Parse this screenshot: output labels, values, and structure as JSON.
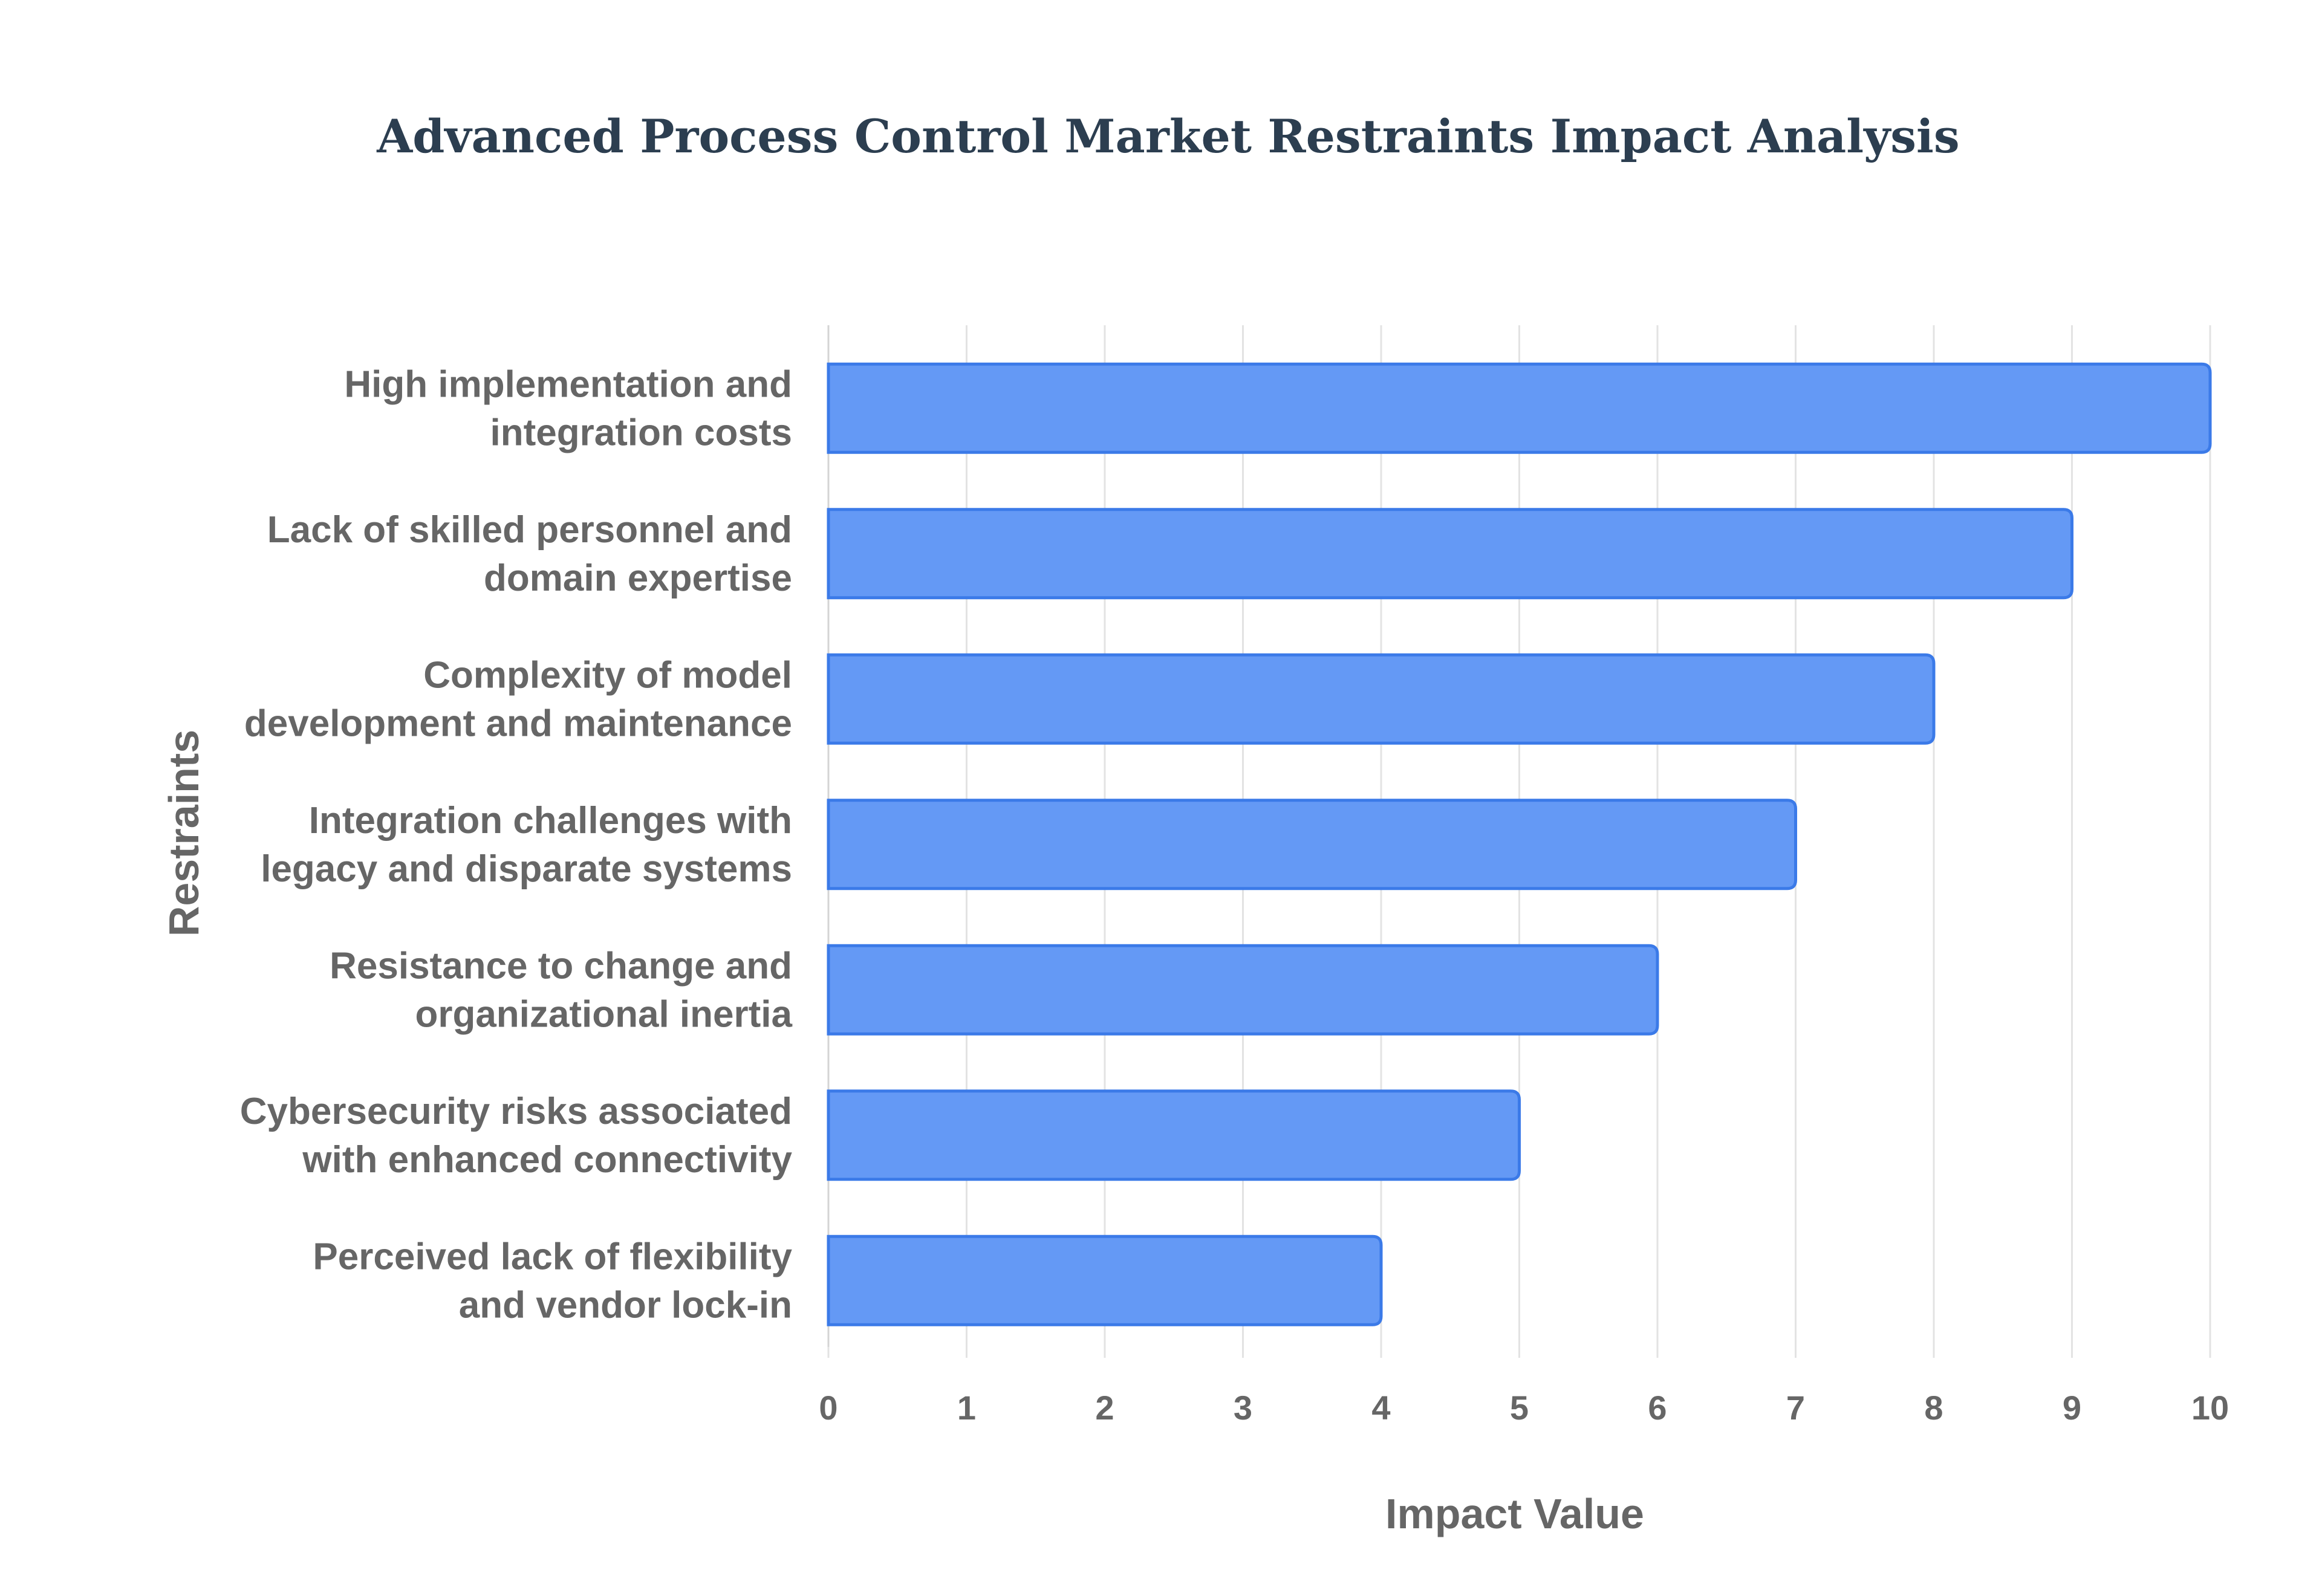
{
  "chart_data": {
    "type": "bar",
    "orientation": "horizontal",
    "title": "Advanced Process Control Market Restraints Impact Analysis",
    "xlabel": "Impact Value",
    "ylabel": "Restraints",
    "xlim": [
      0,
      10
    ],
    "x_ticks": [
      "0",
      "1",
      "2",
      "3",
      "4",
      "5",
      "6",
      "7",
      "8",
      "9",
      "10"
    ],
    "grid": true,
    "legend": "none",
    "bar_color": "#6499f5",
    "bar_border_color": "#3b7ae8",
    "categories": [
      [
        "High implementation and",
        "integration costs"
      ],
      [
        "Lack of skilled personnel and",
        "domain expertise"
      ],
      [
        "Complexity of model",
        "development and maintenance"
      ],
      [
        "Integration challenges with",
        "legacy and disparate systems"
      ],
      [
        "Resistance to change and",
        "organizational inertia"
      ],
      [
        "Cybersecurity risks associated",
        "with enhanced connectivity"
      ],
      [
        "Perceived lack of flexibility",
        "and vendor lock-in"
      ]
    ],
    "values": [
      10,
      9,
      8,
      7,
      6,
      5,
      4
    ]
  }
}
